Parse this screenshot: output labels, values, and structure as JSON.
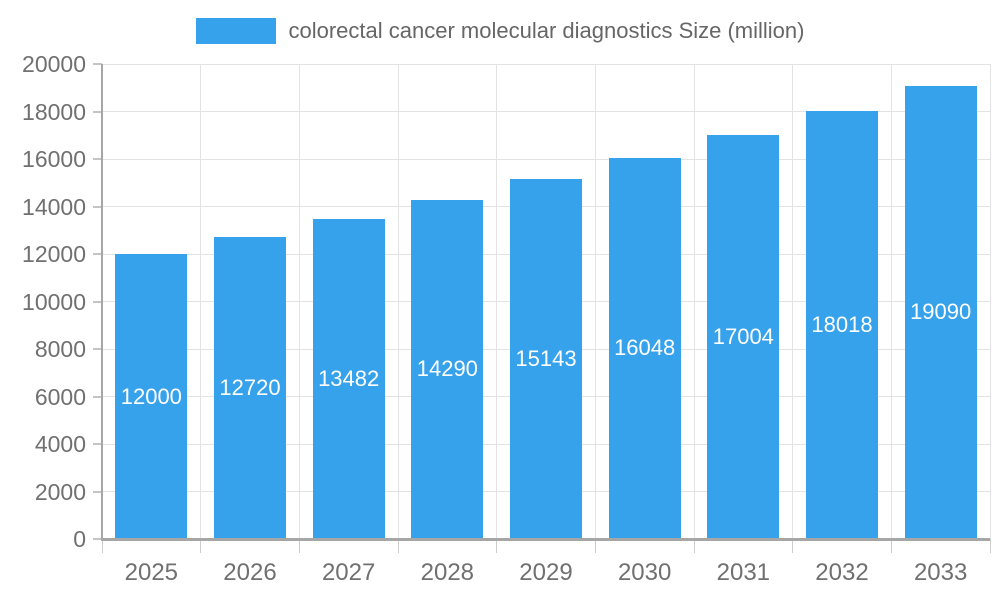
{
  "chart_data": {
    "type": "bar",
    "legend_label": "colorectal cancer molecular diagnostics Size (million)",
    "categories": [
      "2025",
      "2026",
      "2027",
      "2028",
      "2029",
      "2030",
      "2031",
      "2032",
      "2033"
    ],
    "values": [
      12000,
      12720,
      13482,
      14290,
      15143,
      16048,
      17004,
      18018,
      19090
    ],
    "ylim": [
      0,
      20000
    ],
    "ytick_step": 2000,
    "yticks": [
      0,
      2000,
      4000,
      6000,
      8000,
      10000,
      12000,
      14000,
      16000,
      18000,
      20000
    ],
    "grid": true,
    "legend_position": "top",
    "colors": {
      "bar": "#36a2eb",
      "value_label": "#ffffff",
      "axis_text": "#707070",
      "legend_text": "#666666",
      "gridline": "#e3e3e3",
      "axis_line": "#a6a6a6"
    }
  }
}
